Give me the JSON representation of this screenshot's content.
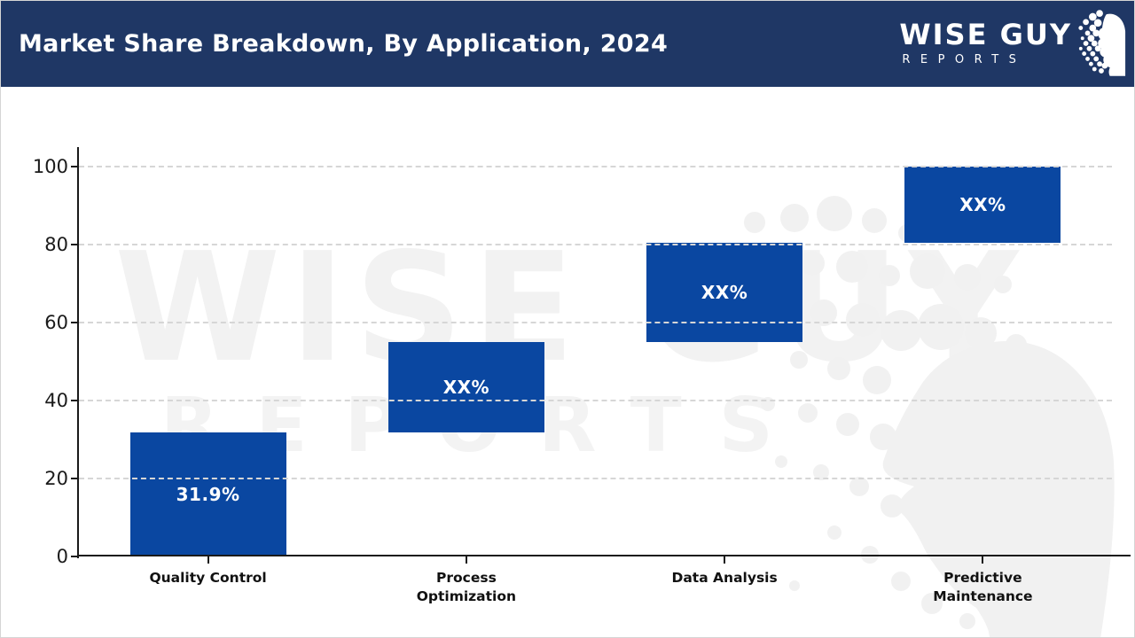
{
  "header": {
    "title": "Market Share Breakdown, By Application, 2024",
    "logo": {
      "line1": "WISE GUY",
      "line2": "REPORTS"
    }
  },
  "watermark": {
    "line1": "WISE GUY",
    "line2": "REPORTS"
  },
  "chart_data": {
    "type": "bar",
    "subtype": "waterfall",
    "title": "Market Share Breakdown, By Application, 2024",
    "unit": "%",
    "categories": [
      "Quality Control",
      "Process Optimization",
      "Data Analysis",
      "Predictive Maintenance"
    ],
    "category_label_lines": [
      [
        "Quality Control"
      ],
      [
        "Process",
        "Optimization"
      ],
      [
        "Data Analysis"
      ],
      [
        "Predictive",
        "Maintenance"
      ]
    ],
    "segments": [
      {
        "category": "Quality Control",
        "start": 0,
        "end": 31.9,
        "label": "31.9%"
      },
      {
        "category": "Process Optimization",
        "start": 31.9,
        "end": 55,
        "label": "XX%"
      },
      {
        "category": "Data Analysis",
        "start": 55,
        "end": 80.5,
        "label": "XX%"
      },
      {
        "category": "Predictive Maintenance",
        "start": 80.5,
        "end": 100,
        "label": "XX%"
      }
    ],
    "yticks": [
      0,
      20,
      40,
      60,
      80,
      100
    ],
    "ylim": [
      0,
      105
    ],
    "grid": "horizontal-dashed",
    "legend": "none",
    "colors": {
      "bar": "#0a47a1",
      "bar_label": "#ffffff",
      "axis": "#1a1a1a",
      "grid": "#d6d6d6",
      "watermark": "#f2f2f2",
      "header_bg": "#1f3765",
      "header_text": "#ffffff"
    }
  }
}
